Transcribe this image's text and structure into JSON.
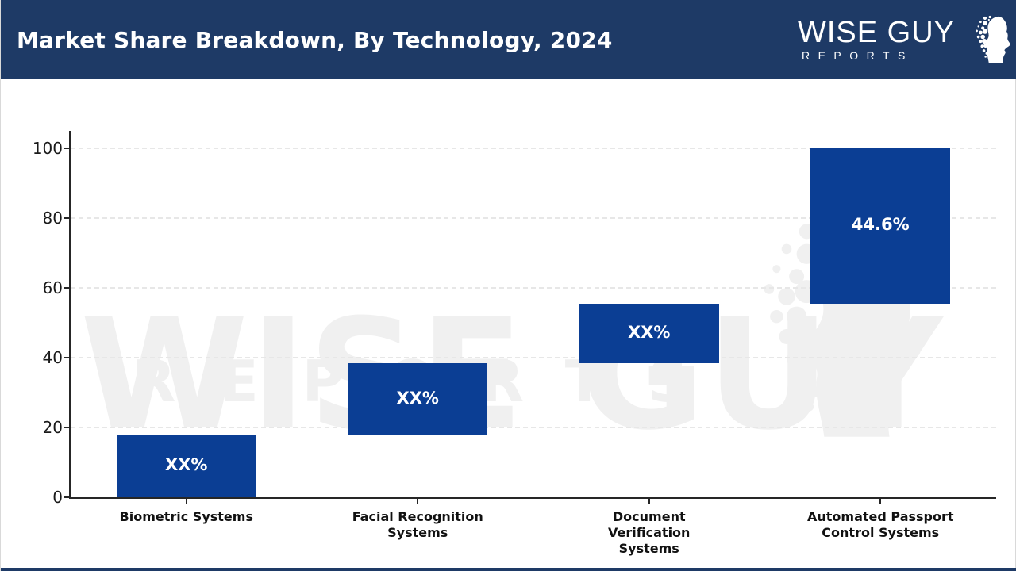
{
  "header": {
    "title": "Market Share Breakdown, By Technology, 2024",
    "logo": {
      "line1": "WISE GUY",
      "line2": "REPORTS",
      "icon": "face-dots-logo"
    }
  },
  "watermark": {
    "line1": "WISE GUY",
    "line2": "REPORTS"
  },
  "chart_data": {
    "type": "bar",
    "subtype": "waterfall",
    "title": "Market Share Breakdown, By Technology, 2024",
    "categories": [
      "Biometric Systems",
      "Facial Recognition Systems",
      "Document Verification Systems",
      "Automated Passport Control Systems"
    ],
    "categories_lines": [
      [
        "Biometric Systems"
      ],
      [
        "Facial Recognition",
        "Systems"
      ],
      [
        "Document",
        "Verification",
        "Systems"
      ],
      [
        "Automated Passport",
        "Control Systems"
      ]
    ],
    "segments": [
      {
        "start": 0,
        "end": 17.7,
        "label": "XX%"
      },
      {
        "start": 17.7,
        "end": 38.4,
        "label": "XX%"
      },
      {
        "start": 38.4,
        "end": 55.4,
        "label": "XX%"
      },
      {
        "start": 55.4,
        "end": 100,
        "label": "44.6%"
      }
    ],
    "ylabel": "",
    "xlabel": "",
    "ylim": [
      0,
      100
    ],
    "yticks": [
      0,
      20,
      40,
      60,
      80,
      100
    ],
    "grid": "horizontal-dashed",
    "legend": "none",
    "bar_color": "#0b3e94",
    "value_label_color": "#ffffff",
    "axis_color": "#262626",
    "header_color": "#1e3a66",
    "watermark_color": "#f0f0f0"
  }
}
